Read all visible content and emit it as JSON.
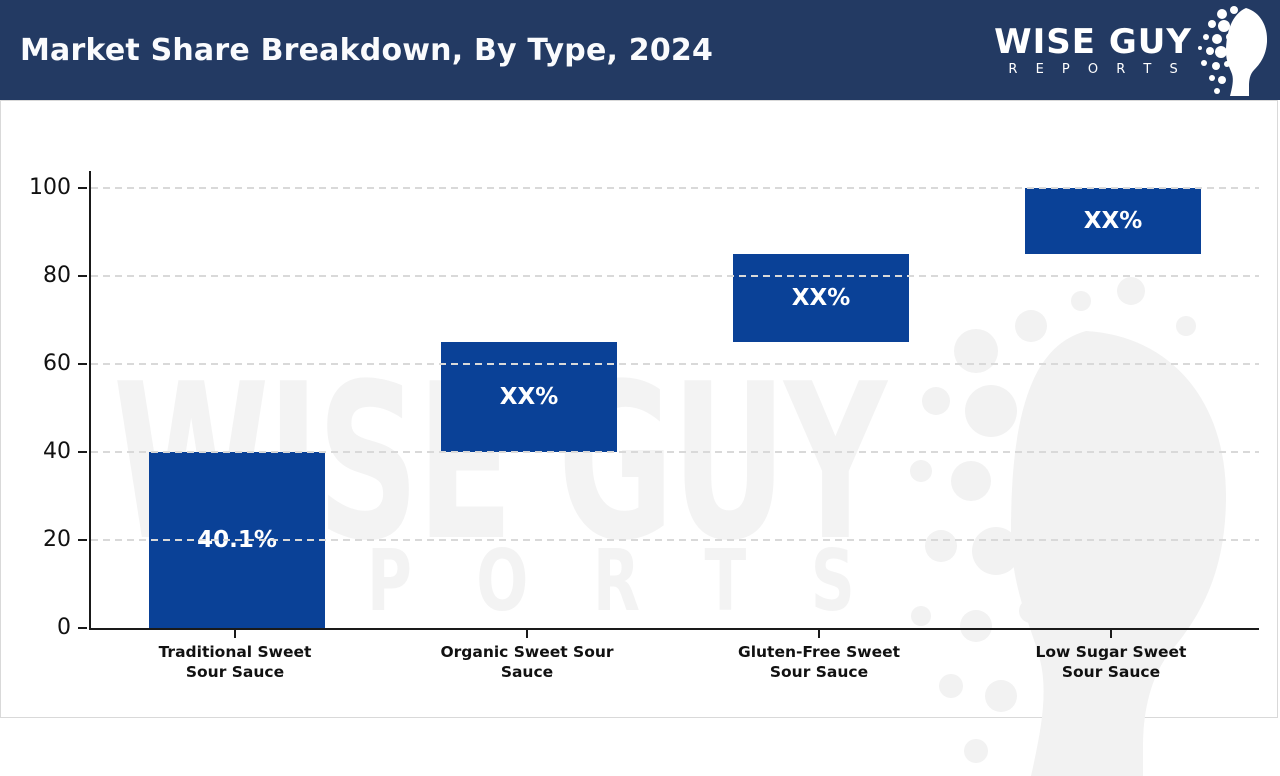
{
  "header": {
    "title": "Market Share Breakdown, By Type, 2024",
    "bg_color": "#233a63",
    "logo": {
      "line1": "WISE GUY",
      "line2": "R E P O R T S"
    }
  },
  "watermark": {
    "line1": "WISE GUY",
    "line2": "R E P O R T S"
  },
  "chart_data": {
    "type": "bar",
    "variant": "floating-segment-bars",
    "title": "Market Share Breakdown, By Type, 2024",
    "categories": [
      "Traditional Sweet Sour Sauce",
      "Organic Sweet Sour Sauce",
      "Gluten-Free Sweet Sour Sauce",
      "Low Sugar Sweet Sour Sauce"
    ],
    "category_lines": [
      [
        "Traditional Sweet",
        "Sour Sauce"
      ],
      [
        "Organic Sweet Sour",
        "Sauce"
      ],
      [
        "Gluten-Free Sweet",
        "Sour Sauce"
      ],
      [
        "Low Sugar Sweet",
        "Sour Sauce"
      ]
    ],
    "bars": [
      {
        "category": "Traditional Sweet Sour Sauce",
        "label": "40.1%",
        "start": 0,
        "end": 40.1
      },
      {
        "category": "Organic Sweet Sour Sauce",
        "label": "XX%",
        "start": 40.1,
        "end": 65
      },
      {
        "category": "Gluten-Free Sweet Sour Sauce",
        "label": "XX%",
        "start": 65,
        "end": 85
      },
      {
        "category": "Low Sugar Sweet Sour Sauce",
        "label": "XX%",
        "start": 85,
        "end": 100
      }
    ],
    "yticks": [
      0,
      20,
      40,
      60,
      80,
      100
    ],
    "ylim": [
      0,
      103.9
    ],
    "xlabel": "",
    "ylabel": "",
    "grid": "horizontal-dashed",
    "legend": "none",
    "colors": {
      "bar": "#0a4197",
      "bar_label": "#ffffff",
      "axis": "#1a1a1a",
      "gridline": "#d9d9d9",
      "tick_label": "#111111",
      "watermark": "#f3f3f3"
    }
  }
}
